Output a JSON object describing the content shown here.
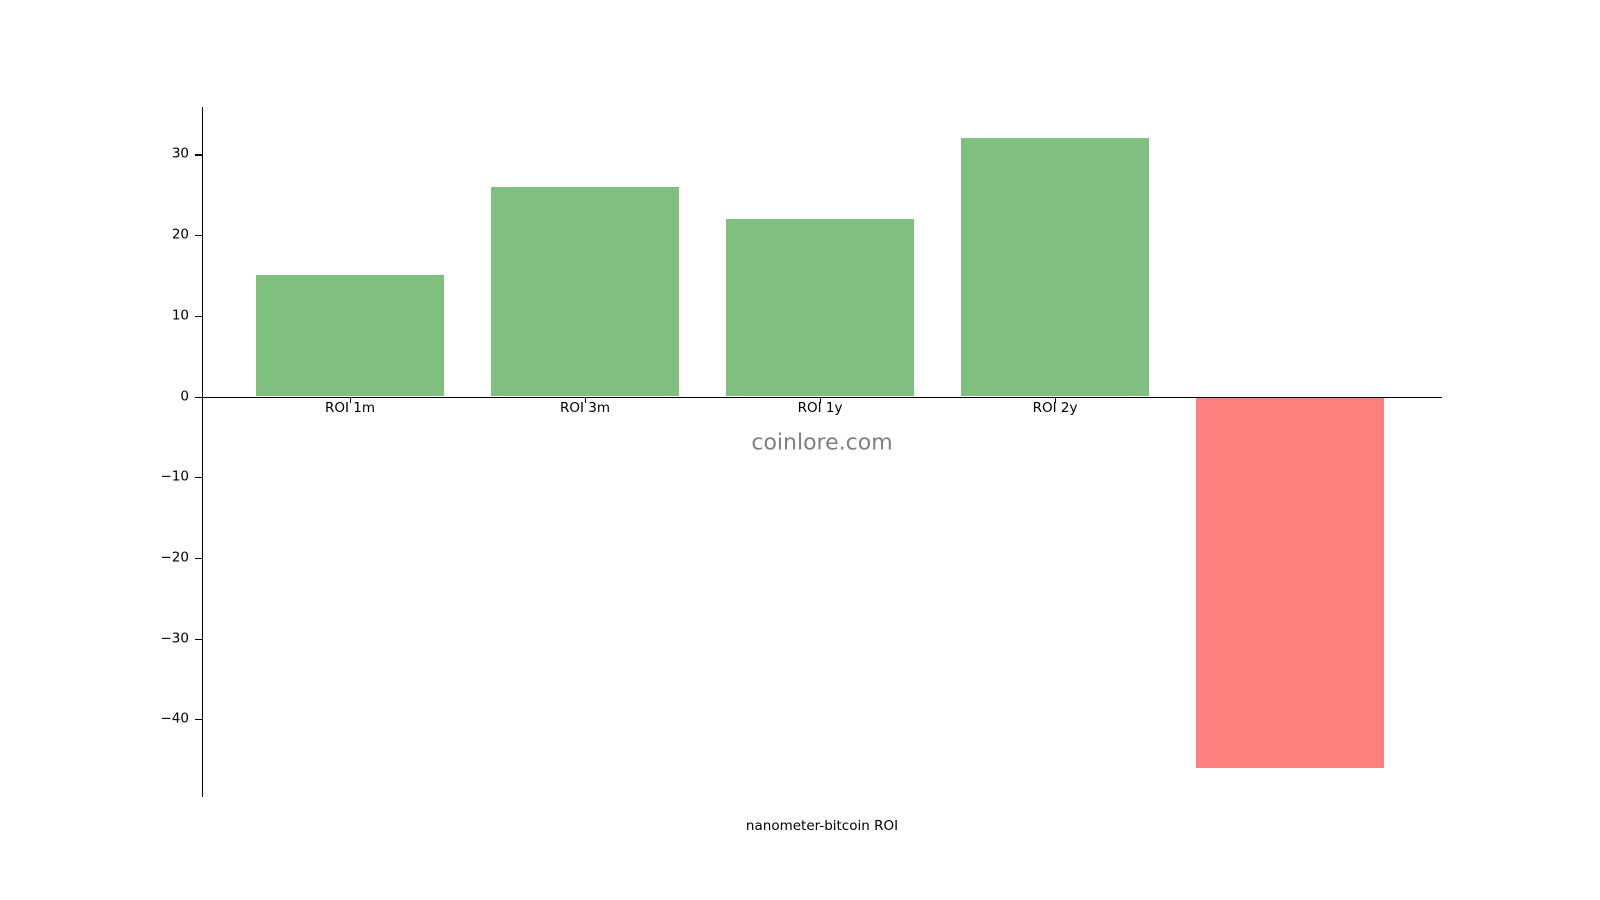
{
  "chart_data": {
    "type": "bar",
    "title": "nanometer-bitcoin ROI",
    "watermark": "coinlore.com",
    "categories": [
      "ROI 1m",
      "ROI 3m",
      "ROI 1y",
      "ROI 2y",
      ""
    ],
    "values": [
      15,
      26,
      22,
      32,
      -46
    ],
    "bar_colors": [
      "#7fbf7f",
      "#7fbf7f",
      "#7fbf7f",
      "#7fbf7f",
      "#ff7f7f"
    ],
    "positive_color": "#7fbf7f",
    "negative_color": "#ff7f7f",
    "axis_color": "#000000",
    "text_color": "#000000",
    "watermark_color": "#808080",
    "xlabel": "",
    "ylabel": "",
    "y_tick_values": [
      30,
      20,
      10,
      0,
      -10,
      -20,
      -30,
      -40
    ],
    "y_tick_labels": [
      "30",
      "20",
      "10",
      "0",
      "−10",
      "−20",
      "−30",
      "−40"
    ],
    "ylim": [
      -49.8,
      35.9
    ],
    "grid": false,
    "legend": false
  }
}
